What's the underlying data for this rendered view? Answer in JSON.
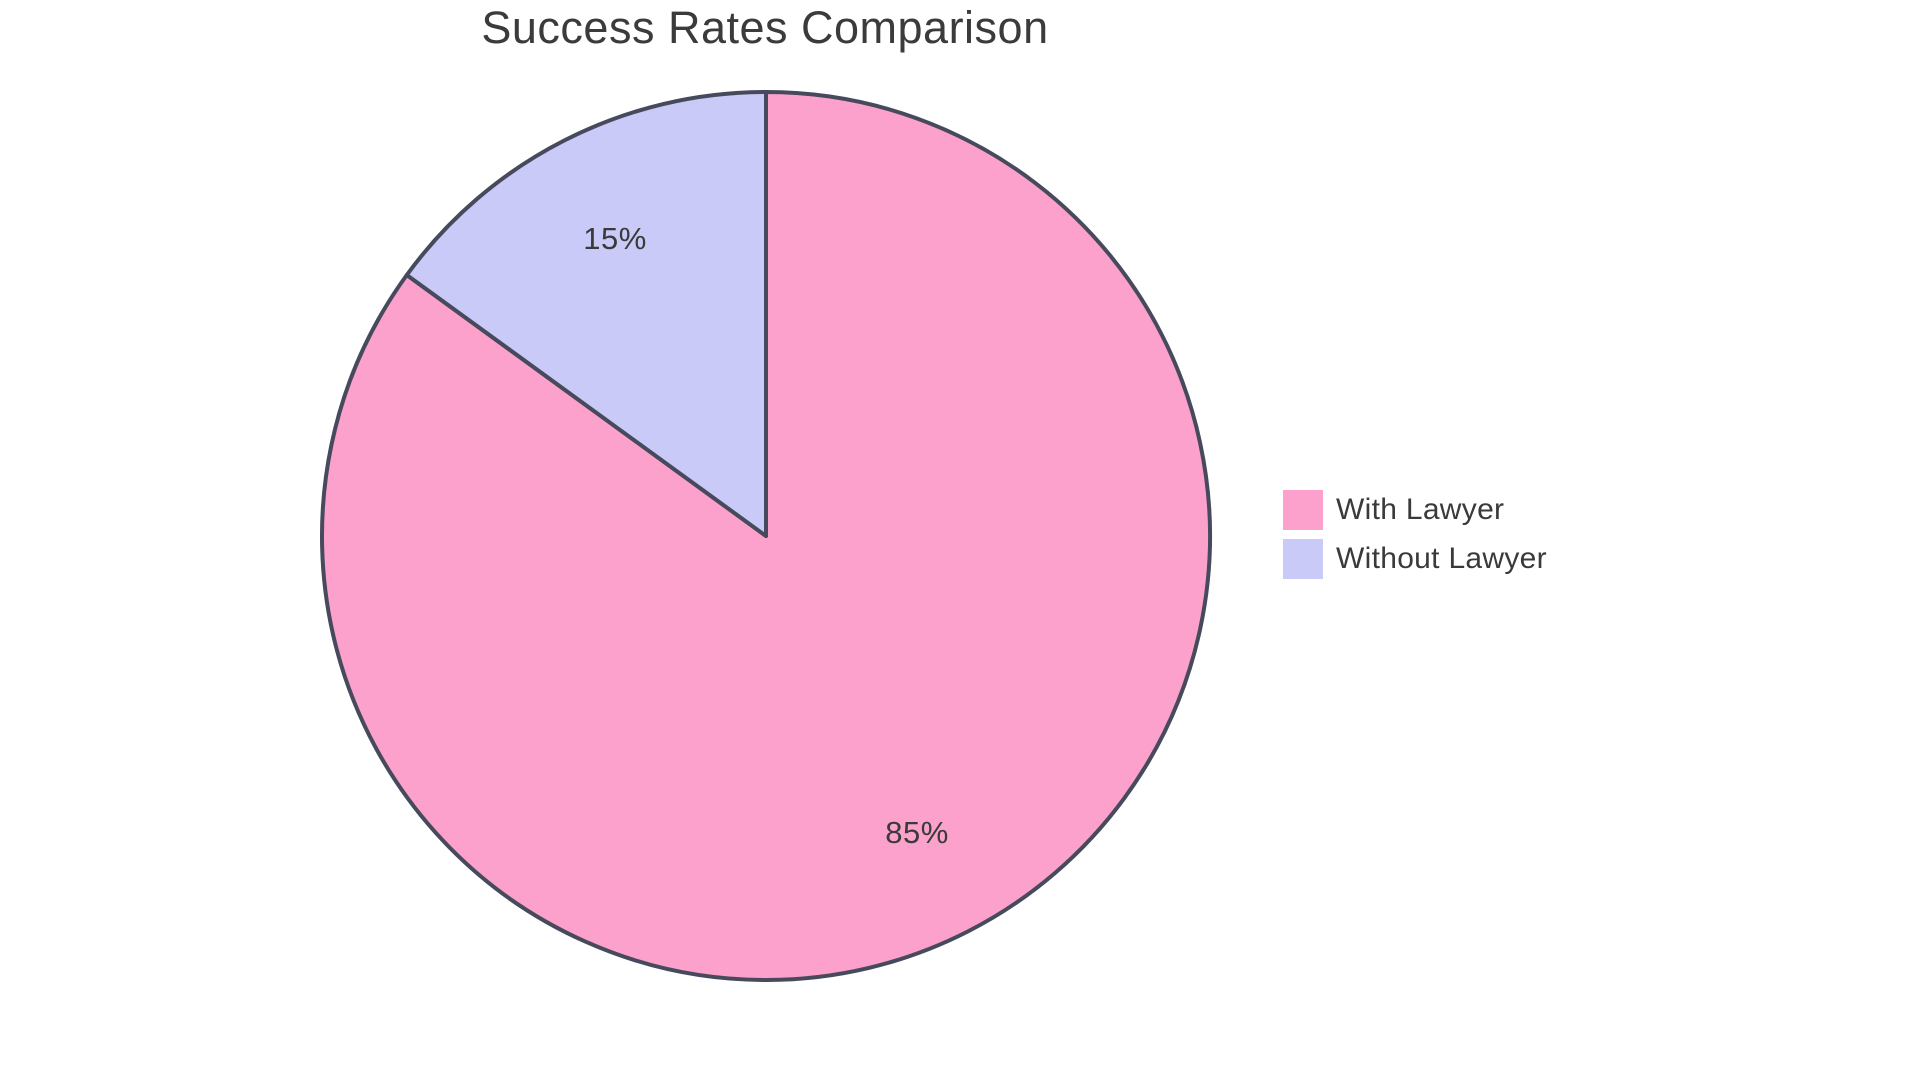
{
  "page": {
    "background": "#FFFFFF"
  },
  "chart_data": {
    "type": "pie",
    "title": "Success Rates Comparison",
    "slices": [
      {
        "name": "With Lawyer",
        "value": 85,
        "label": "85%",
        "color": "#FBA1CB"
      },
      {
        "name": "Without Lawyer",
        "value": 15,
        "label": "15%",
        "color": "#C9CAF7"
      }
    ],
    "total": 100,
    "start_angle": "top",
    "direction": "clockwise",
    "outline_color": "#464A5C",
    "label_color": "#3A3A3A",
    "title_color": "#3B3B3B",
    "legend_position": "right",
    "grid": false
  }
}
